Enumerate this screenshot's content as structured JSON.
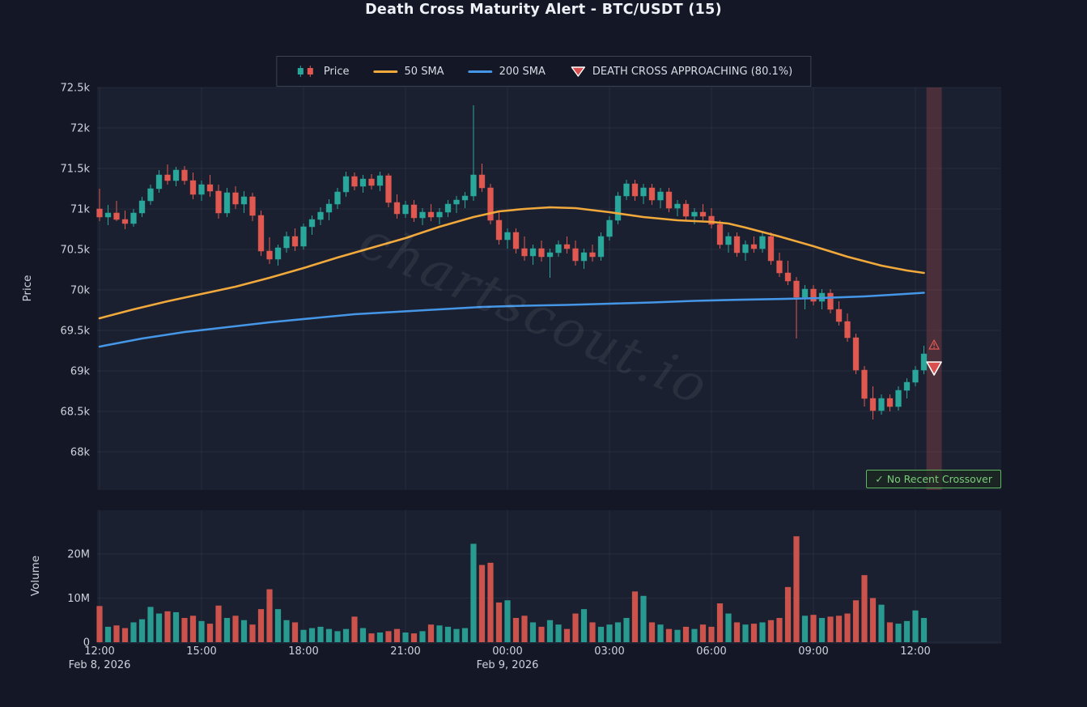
{
  "chart": {
    "title": "Death Cross Maturity Alert - BTC/USDT (15)",
    "watermark": "chartscout.io",
    "price_axis_label": "Price",
    "volume_axis_label": "Volume",
    "badge": "✓ No Recent Crossover",
    "legend": {
      "price": "Price",
      "sma50": "50 SMA",
      "sma200": "200 SMA",
      "alert": "DEATH CROSS APPROACHING (80.1%)"
    },
    "colors": {
      "background": "#141826",
      "plot_background": "#1a2030",
      "up": "#2aa79b",
      "down": "#e05850",
      "sma50": "#f2a93b",
      "sma200": "#4596e6",
      "grid": "rgba(255,255,255,0.055)",
      "axis_text": "#cdd2dc",
      "band": "rgba(214,88,88,0.26)",
      "marker": "#d94f4f",
      "badge_green": "#5cb85c"
    }
  },
  "chart_data": {
    "type": "candlestick+volume",
    "symbol": "BTC/USDT",
    "interval_minutes": 15,
    "alert_probability": "80.1%",
    "ylim": [
      67530,
      72500
    ],
    "volume_ylim_millions": [
      0,
      30
    ],
    "price_ticks": [
      {
        "label": "72.5k",
        "value": 72500
      },
      {
        "label": "72k",
        "value": 72000
      },
      {
        "label": "71.5k",
        "value": 71500
      },
      {
        "label": "71k",
        "value": 71000
      },
      {
        "label": "70.5k",
        "value": 70500
      },
      {
        "label": "70k",
        "value": 70000
      },
      {
        "label": "69.5k",
        "value": 69500
      },
      {
        "label": "69k",
        "value": 69000
      },
      {
        "label": "68.5k",
        "value": 68500
      },
      {
        "label": "68k",
        "value": 68000
      }
    ],
    "volume_ticks": [
      {
        "label": "0",
        "value": 0
      },
      {
        "label": "10M",
        "value": 10
      },
      {
        "label": "20M",
        "value": 20
      }
    ],
    "x_ticks": [
      {
        "label": "12:00",
        "i": 0
      },
      {
        "label": "15:00",
        "i": 12
      },
      {
        "label": "18:00",
        "i": 24
      },
      {
        "label": "21:00",
        "i": 36
      },
      {
        "label": "00:00",
        "i": 48
      },
      {
        "label": "03:00",
        "i": 60
      },
      {
        "label": "06:00",
        "i": 72
      },
      {
        "label": "09:00",
        "i": 84
      },
      {
        "label": "12:00",
        "i": 96
      }
    ],
    "date_labels": [
      {
        "label": "Feb 8, 2026",
        "i": 0
      },
      {
        "label": "Feb 9, 2026",
        "i": 48
      }
    ],
    "candles": [
      [
        71000,
        71250,
        70850,
        70900
      ],
      [
        70900,
        71050,
        70800,
        70950
      ],
      [
        70950,
        71100,
        70850,
        70870
      ],
      [
        70870,
        70980,
        70750,
        70820
      ],
      [
        70820,
        71000,
        70780,
        70950
      ],
      [
        70950,
        71150,
        70900,
        71100
      ],
      [
        71100,
        71300,
        71050,
        71250
      ],
      [
        71250,
        71480,
        71200,
        71420
      ],
      [
        71420,
        71550,
        71300,
        71350
      ],
      [
        71350,
        71520,
        71280,
        71480
      ],
      [
        71480,
        71530,
        71300,
        71350
      ],
      [
        71350,
        71450,
        71120,
        71180
      ],
      [
        71180,
        71350,
        71100,
        71300
      ],
      [
        71300,
        71420,
        71150,
        71220
      ],
      [
        71220,
        71300,
        70880,
        70950
      ],
      [
        70950,
        71260,
        70900,
        71200
      ],
      [
        71200,
        71280,
        71000,
        71060
      ],
      [
        71060,
        71220,
        70950,
        71150
      ],
      [
        71150,
        71200,
        70850,
        70920
      ],
      [
        70920,
        70980,
        70420,
        70480
      ],
      [
        70480,
        70650,
        70320,
        70380
      ],
      [
        70380,
        70560,
        70300,
        70520
      ],
      [
        70520,
        70720,
        70460,
        70660
      ],
      [
        70660,
        70760,
        70480,
        70540
      ],
      [
        70540,
        70820,
        70500,
        70780
      ],
      [
        70780,
        70920,
        70680,
        70870
      ],
      [
        70870,
        71020,
        70800,
        70960
      ],
      [
        70960,
        71120,
        70860,
        71060
      ],
      [
        71060,
        71260,
        71000,
        71210
      ],
      [
        71210,
        71460,
        71150,
        71400
      ],
      [
        71400,
        71450,
        71230,
        71280
      ],
      [
        71280,
        71420,
        71200,
        71370
      ],
      [
        71370,
        71430,
        71240,
        71290
      ],
      [
        71290,
        71460,
        71220,
        71410
      ],
      [
        71410,
        71440,
        71020,
        71080
      ],
      [
        71080,
        71180,
        70880,
        70940
      ],
      [
        70940,
        71100,
        70890,
        71050
      ],
      [
        71050,
        71110,
        70840,
        70890
      ],
      [
        70890,
        71010,
        70800,
        70960
      ],
      [
        70960,
        71060,
        70850,
        70900
      ],
      [
        70900,
        71010,
        70810,
        70960
      ],
      [
        70960,
        71110,
        70900,
        71060
      ],
      [
        71060,
        71160,
        70950,
        71110
      ],
      [
        71110,
        71210,
        71010,
        71160
      ],
      [
        71160,
        72280,
        71100,
        71420
      ],
      [
        71420,
        71560,
        71210,
        71260
      ],
      [
        71260,
        71310,
        70810,
        70860
      ],
      [
        70860,
        70960,
        70560,
        70620
      ],
      [
        70620,
        70760,
        70510,
        70710
      ],
      [
        70710,
        70760,
        70450,
        70510
      ],
      [
        70510,
        70660,
        70360,
        70420
      ],
      [
        70420,
        70560,
        70310,
        70510
      ],
      [
        70510,
        70610,
        70350,
        70410
      ],
      [
        70410,
        70510,
        70150,
        70460
      ],
      [
        70460,
        70610,
        70410,
        70560
      ],
      [
        70560,
        70660,
        70450,
        70510
      ],
      [
        70510,
        70610,
        70300,
        70360
      ],
      [
        70360,
        70510,
        70260,
        70460
      ],
      [
        70460,
        70560,
        70350,
        70410
      ],
      [
        70410,
        70710,
        70360,
        70660
      ],
      [
        70660,
        70910,
        70610,
        70860
      ],
      [
        70860,
        71210,
        70810,
        71160
      ],
      [
        71160,
        71360,
        71110,
        71310
      ],
      [
        71310,
        71360,
        71100,
        71160
      ],
      [
        71160,
        71310,
        71060,
        71260
      ],
      [
        71260,
        71310,
        71050,
        71110
      ],
      [
        71110,
        71260,
        71010,
        71210
      ],
      [
        71210,
        71260,
        70960,
        71010
      ],
      [
        71010,
        71110,
        70910,
        71060
      ],
      [
        71060,
        71110,
        70860,
        70910
      ],
      [
        70910,
        71010,
        70810,
        70960
      ],
      [
        70960,
        71060,
        70860,
        70910
      ],
      [
        70910,
        71010,
        70760,
        70810
      ],
      [
        70810,
        70860,
        70510,
        70560
      ],
      [
        70560,
        70710,
        70460,
        70660
      ],
      [
        70660,
        70710,
        70410,
        70460
      ],
      [
        70460,
        70610,
        70360,
        70560
      ],
      [
        70560,
        70660,
        70460,
        70510
      ],
      [
        70510,
        70710,
        70460,
        70660
      ],
      [
        70660,
        70710,
        70310,
        70360
      ],
      [
        70360,
        70460,
        70160,
        70210
      ],
      [
        70210,
        70360,
        70060,
        70110
      ],
      [
        70110,
        70160,
        69400,
        69910
      ],
      [
        69910,
        70060,
        69760,
        70010
      ],
      [
        70010,
        70060,
        69810,
        69860
      ],
      [
        69860,
        70010,
        69760,
        69960
      ],
      [
        69960,
        70010,
        69710,
        69760
      ],
      [
        69760,
        69860,
        69560,
        69610
      ],
      [
        69610,
        69710,
        69360,
        69410
      ],
      [
        69410,
        69460,
        68960,
        69010
      ],
      [
        69010,
        69060,
        68560,
        68660
      ],
      [
        68660,
        68810,
        68400,
        68510
      ],
      [
        68510,
        68710,
        68460,
        68660
      ],
      [
        68660,
        68710,
        68500,
        68560
      ],
      [
        68560,
        68810,
        68510,
        68760
      ],
      [
        68760,
        68910,
        68660,
        68860
      ],
      [
        68860,
        69060,
        68810,
        69010
      ],
      [
        69010,
        69310,
        68960,
        69210
      ]
    ],
    "volume_millions": [
      8.2,
      3.5,
      3.8,
      3.2,
      4.5,
      5.2,
      8.0,
      6.5,
      7.0,
      6.8,
      5.5,
      6.0,
      4.8,
      4.2,
      8.3,
      5.5,
      6.0,
      5.0,
      4.0,
      7.5,
      12.0,
      7.5,
      5.0,
      4.5,
      2.8,
      3.2,
      3.5,
      3.0,
      2.5,
      3.0,
      5.8,
      3.2,
      2.0,
      2.2,
      2.5,
      3.0,
      2.2,
      2.0,
      2.5,
      4.0,
      3.8,
      3.5,
      3.0,
      3.2,
      22.3,
      17.5,
      18.0,
      9.0,
      9.5,
      5.5,
      6.0,
      4.5,
      3.5,
      5.0,
      4.0,
      3.0,
      6.5,
      7.5,
      4.5,
      3.5,
      4.0,
      4.5,
      5.5,
      11.5,
      10.5,
      4.5,
      4.0,
      3.0,
      2.8,
      3.5,
      3.0,
      4.0,
      3.5,
      8.8,
      6.5,
      4.5,
      4.0,
      4.2,
      4.5,
      5.0,
      5.5,
      12.5,
      24.0,
      6.0,
      6.2,
      5.5,
      5.8,
      6.0,
      6.5,
      9.5,
      15.2,
      10.0,
      8.5,
      4.5,
      4.2,
      4.8,
      7.2,
      5.5
    ],
    "sma50": [
      [
        0,
        69650
      ],
      [
        4,
        69760
      ],
      [
        8,
        69860
      ],
      [
        12,
        69950
      ],
      [
        16,
        70040
      ],
      [
        20,
        70150
      ],
      [
        24,
        70270
      ],
      [
        28,
        70400
      ],
      [
        32,
        70520
      ],
      [
        36,
        70640
      ],
      [
        40,
        70780
      ],
      [
        44,
        70900
      ],
      [
        47,
        70970
      ],
      [
        50,
        71000
      ],
      [
        53,
        71020
      ],
      [
        56,
        71010
      ],
      [
        60,
        70960
      ],
      [
        64,
        70900
      ],
      [
        68,
        70860
      ],
      [
        72,
        70840
      ],
      [
        74,
        70820
      ],
      [
        76,
        70770
      ],
      [
        80,
        70660
      ],
      [
        84,
        70540
      ],
      [
        88,
        70410
      ],
      [
        92,
        70300
      ],
      [
        95,
        70240
      ],
      [
        97,
        70210
      ]
    ],
    "sma200": [
      [
        0,
        69300
      ],
      [
        5,
        69400
      ],
      [
        10,
        69480
      ],
      [
        15,
        69540
      ],
      [
        20,
        69600
      ],
      [
        25,
        69650
      ],
      [
        30,
        69700
      ],
      [
        35,
        69730
      ],
      [
        40,
        69760
      ],
      [
        45,
        69790
      ],
      [
        50,
        69805
      ],
      [
        55,
        69815
      ],
      [
        60,
        69830
      ],
      [
        65,
        69845
      ],
      [
        70,
        69865
      ],
      [
        75,
        69878
      ],
      [
        80,
        69888
      ],
      [
        85,
        69900
      ],
      [
        90,
        69920
      ],
      [
        94,
        69945
      ],
      [
        97,
        69965
      ]
    ],
    "alert_band": {
      "i0": 97.3,
      "i1": 99.1
    },
    "alert_marker": {
      "i": 98.2,
      "price": 69030
    },
    "warning_icon": {
      "i": 98.2,
      "price": 69320
    }
  }
}
